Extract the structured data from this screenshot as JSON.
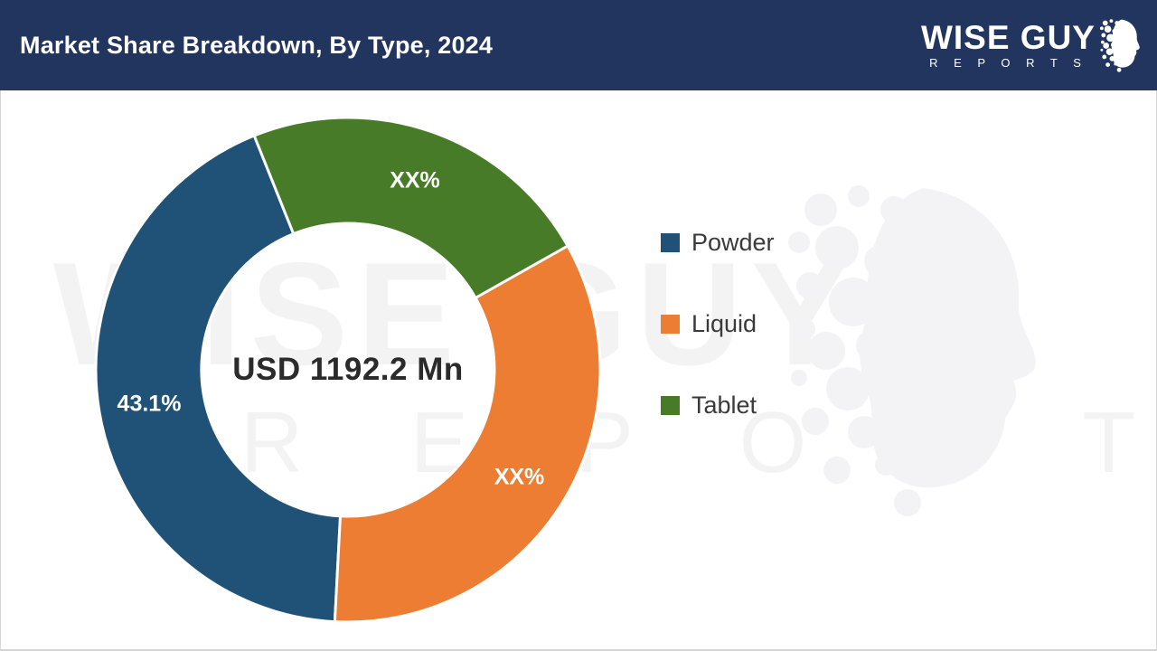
{
  "header": {
    "title": "Market Share Breakdown, By Type, 2024",
    "bg_color": "#22355E",
    "logo": {
      "line1": "WISE GUY",
      "line2": "R E P O R T S"
    }
  },
  "watermark": {
    "line1": "WISE GUY",
    "line2": "R E P O R T S"
  },
  "chart_data": {
    "type": "donut",
    "title": "Market Share Breakdown, By Type, 2024",
    "center_label": "USD 1192.2 Mn",
    "legend_position": "right",
    "rotation_deg_from_north": 183,
    "arc_order": [
      0,
      2,
      1
    ],
    "slices": [
      {
        "label": "Powder",
        "display_value": "43.1%",
        "value_pct": 43.1,
        "drawn_pct": 43.1,
        "color": "#205278"
      },
      {
        "label": "Liquid",
        "display_value": "XX%",
        "value_pct": null,
        "drawn_pct": 34.0,
        "color": "#EC7D33"
      },
      {
        "label": "Tablet",
        "display_value": "XX%",
        "value_pct": null,
        "drawn_pct": 22.9,
        "color": "#477B27"
      }
    ]
  }
}
